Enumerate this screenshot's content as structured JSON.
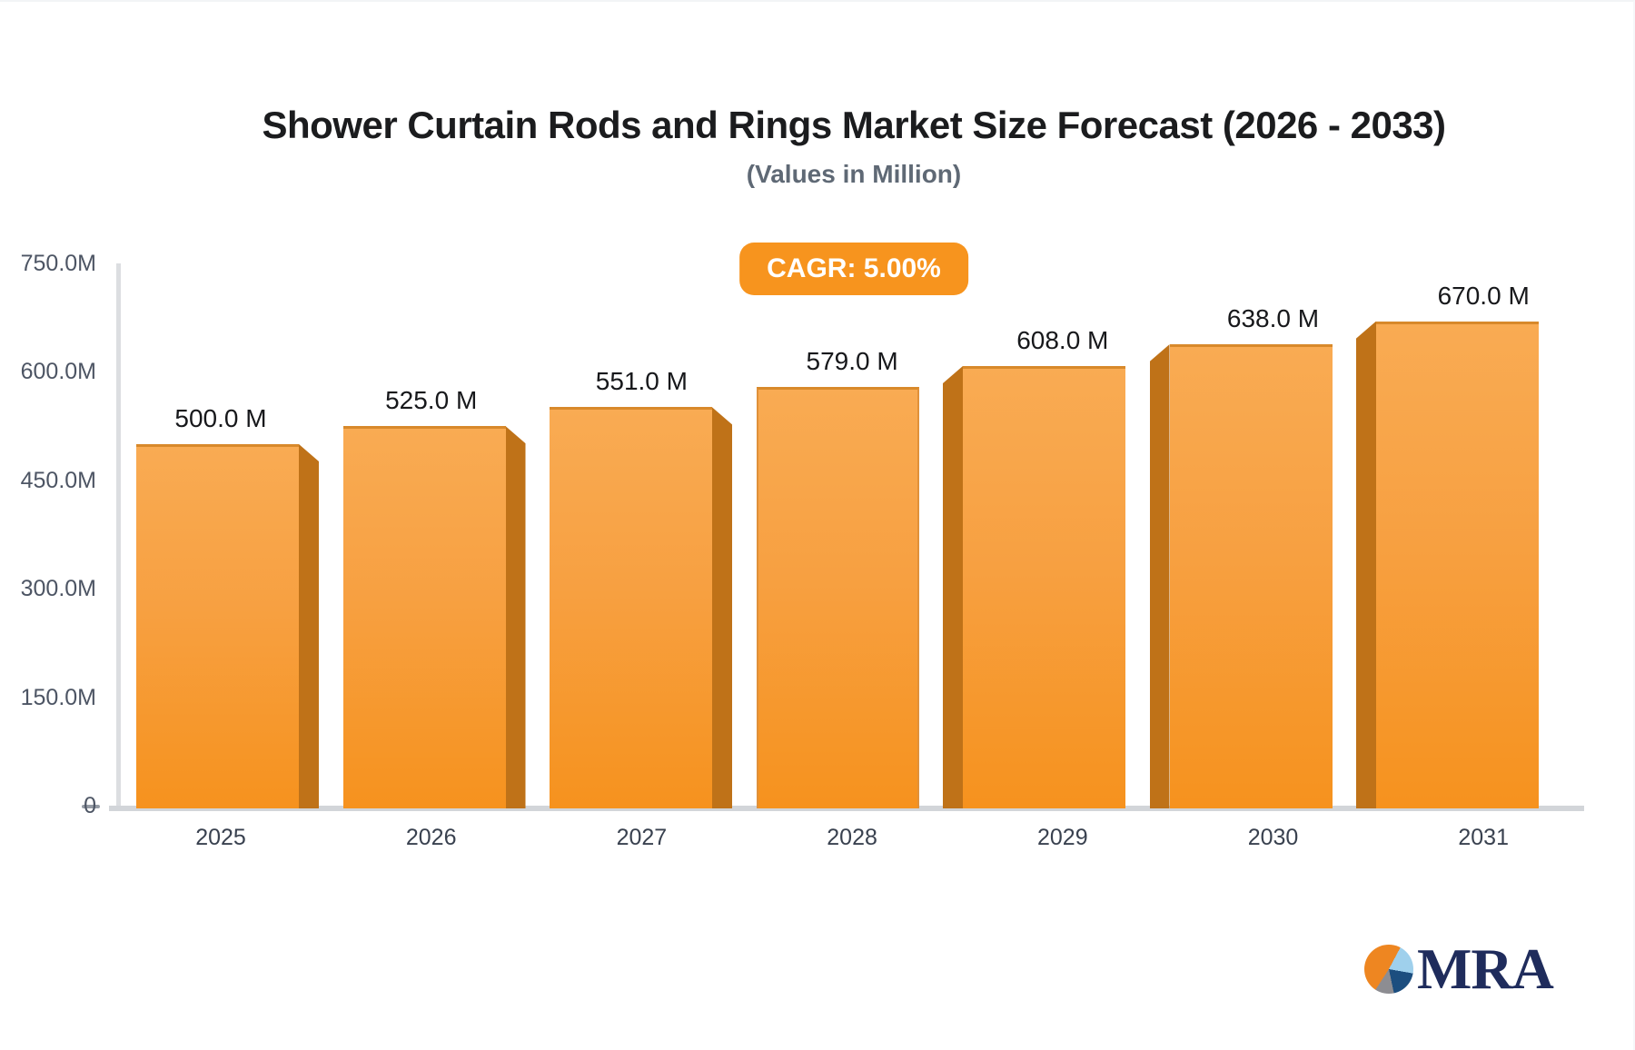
{
  "header": {
    "title": "Shower Curtain Rods and Rings Market Size Forecast (2026 - 2033)",
    "subtitle": "(Values in Million)",
    "cagr_badge": "CAGR: 5.00%"
  },
  "chart_data": {
    "type": "bar",
    "title": "Shower Curtain Rods and Rings Market Size Forecast (2026 - 2033)",
    "subtitle": "(Values in Million)",
    "unit": "Million",
    "cagr": "5.00%",
    "categories": [
      "2025",
      "2026",
      "2027",
      "2028",
      "2029",
      "2030",
      "2031"
    ],
    "values": [
      500,
      525,
      551,
      579,
      608,
      638,
      670
    ],
    "bar_labels": [
      "500.0 M",
      "525.0 M",
      "551.0 M",
      "579.0 M",
      "608.0 M",
      "638.0 M",
      "670.0 M"
    ],
    "y_ticks": [
      {
        "value": 750,
        "label": "750.0M"
      },
      {
        "value": 600,
        "label": "600.0M"
      },
      {
        "value": 450,
        "label": "450.0M"
      },
      {
        "value": 300,
        "label": "300.0M"
      },
      {
        "value": 150,
        "label": "150.0M"
      },
      {
        "value": 0,
        "label": "0"
      }
    ],
    "ylim": [
      0,
      750
    ],
    "grid": false,
    "legend": "none",
    "bar_style": "3d-perspective-center",
    "colors": {
      "bar_top": "#f9ab53",
      "bar_bottom": "#f6921e",
      "bar_side": "#bf7218",
      "bar_top_edge": "#d8892b",
      "badge_bg": "#f7941e",
      "axis_line": "#d7dadd",
      "title_text": "#1b1c1e",
      "subtitle_text": "#5f6975"
    }
  },
  "logo": {
    "text": "MRA",
    "icon": "pie-chart-icon",
    "icon_colors": [
      "#ee8621",
      "#9fd0ec",
      "#1c4e7f",
      "#8d8d92"
    ]
  }
}
